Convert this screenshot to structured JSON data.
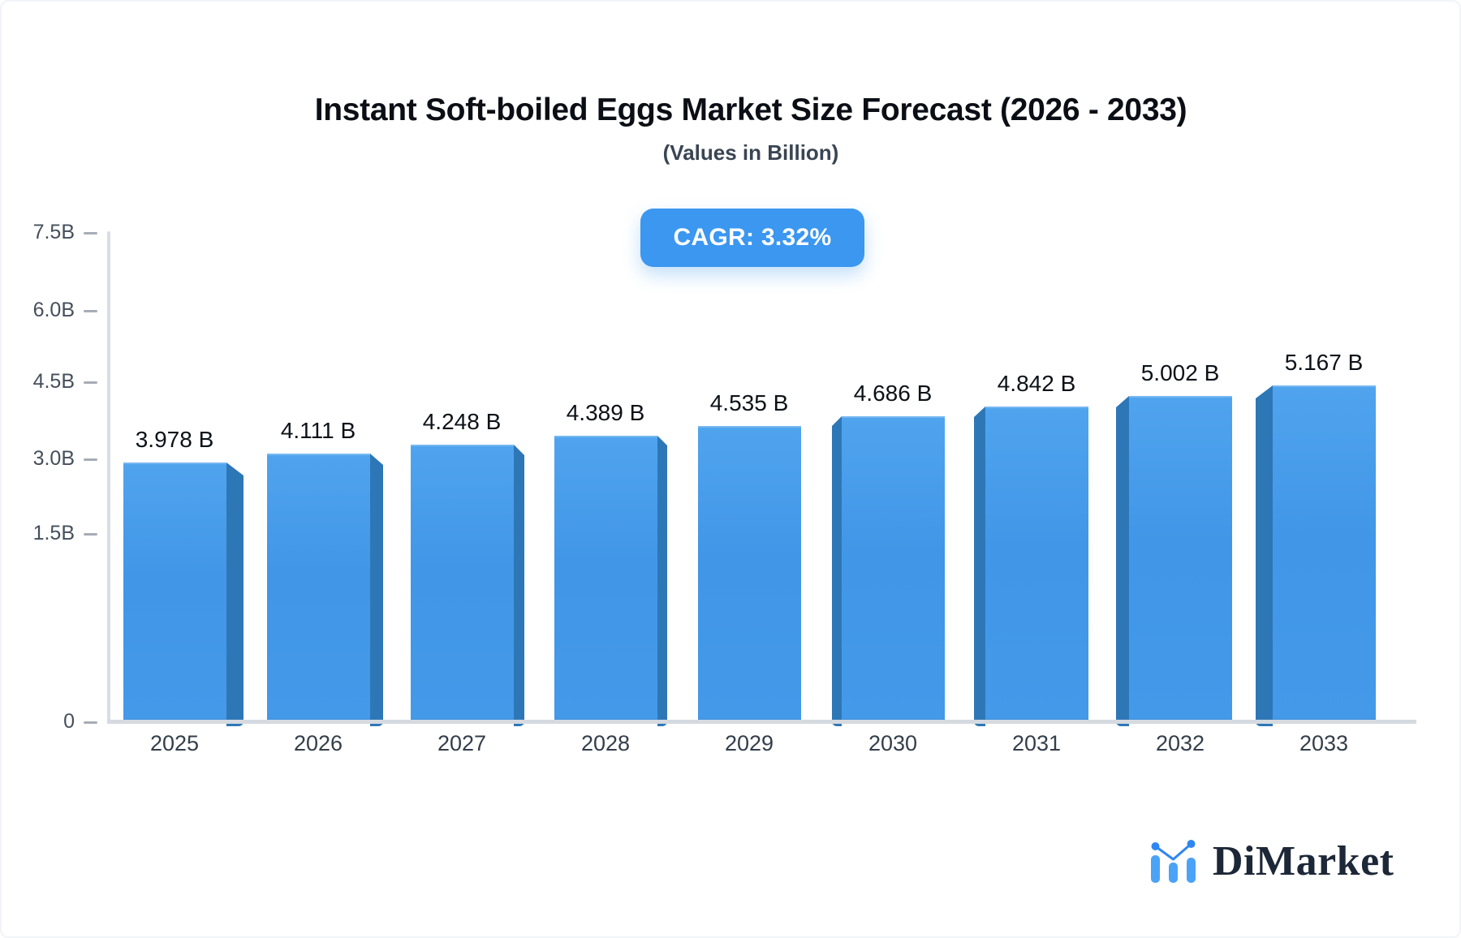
{
  "header": {
    "title": "Instant Soft-boiled Eggs Market Size Forecast (2026 - 2033)",
    "subtitle": "(Values in Billion)",
    "cagr_badge": "CAGR: 3.32%"
  },
  "chart_data": {
    "type": "bar",
    "title": "Instant Soft-boiled Eggs Market Size Forecast (2026 - 2033)",
    "subtitle": "(Values in Billion)",
    "cagr": "3.32%",
    "categories": [
      "2025",
      "2026",
      "2027",
      "2028",
      "2029",
      "2030",
      "2031",
      "2032",
      "2033"
    ],
    "values": [
      3.978,
      4.111,
      4.248,
      4.389,
      4.535,
      4.686,
      4.842,
      5.002,
      5.167
    ],
    "value_labels": [
      "3.978 B",
      "4.111 B",
      "4.248 B",
      "4.389 B",
      "4.535 B",
      "4.686 B",
      "4.842 B",
      "5.002 B",
      "5.167 B"
    ],
    "unit": "B",
    "y_tick_labels": [
      "7.5B",
      "6.0B",
      "4.5B",
      "3.0B",
      "1.5B",
      "0"
    ],
    "ylim": [
      0,
      7.5
    ],
    "grid": false,
    "legend": false,
    "bar_color": "#4499e9",
    "bar_side_color": "#2e77b7",
    "badge_color": "#3b97f0"
  },
  "logo": {
    "name": "DiMarket",
    "icon": "bar-chart-logo-icon"
  }
}
